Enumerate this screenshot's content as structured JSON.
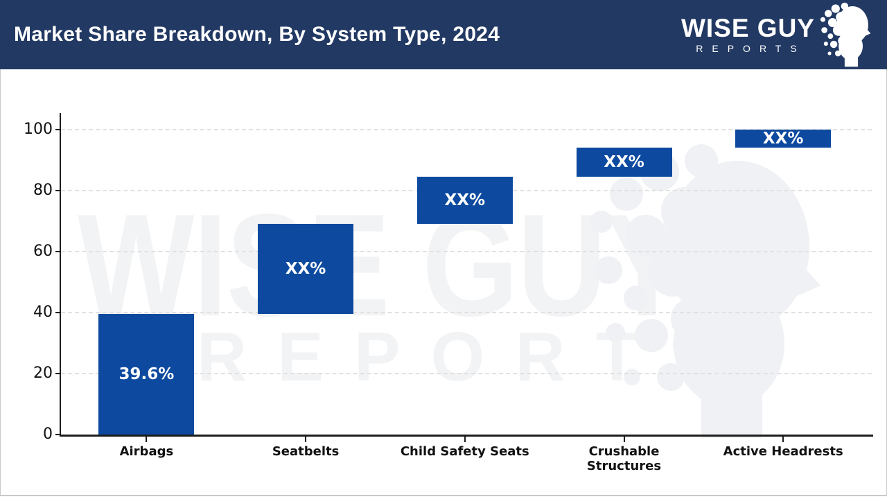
{
  "header": {
    "title": "Market Share Breakdown, By System Type, 2024",
    "logo": {
      "line1": "WISE GUY",
      "line2": "REPORTS"
    }
  },
  "watermark": {
    "line1": "WISE GUY",
    "line2": "REPORTS"
  },
  "chart_data": {
    "type": "bar",
    "subtype": "waterfall-floating-bars",
    "title": "Market Share Breakdown, By System Type, 2024",
    "categories": [
      "Airbags",
      "Seatbelts",
      "Child Safety Seats",
      "Crushable\nStructures",
      "Active Headrests"
    ],
    "segments": [
      {
        "category": "Airbags",
        "start": 0,
        "end": 39.6,
        "label": "39.6%"
      },
      {
        "category": "Seatbelts",
        "start": 39.6,
        "end": 69.2,
        "label": "XX%"
      },
      {
        "category": "Child Safety Seats",
        "start": 69.2,
        "end": 84.5,
        "label": "XX%"
      },
      {
        "category": "Crushable Structures",
        "start": 84.5,
        "end": 94.0,
        "label": "XX%"
      },
      {
        "category": "Active Headrests",
        "start": 94.0,
        "end": 100,
        "label": "XX%"
      }
    ],
    "yticks": [
      0,
      20,
      40,
      60,
      80,
      100
    ],
    "ylim": [
      0,
      105
    ],
    "xlabel": "",
    "ylabel": "",
    "grid": "horizontal-dashed",
    "legend": "none",
    "bar_color": "#0d4a9f",
    "bar_label_color": "#ffffff",
    "header_color": "#223963"
  }
}
